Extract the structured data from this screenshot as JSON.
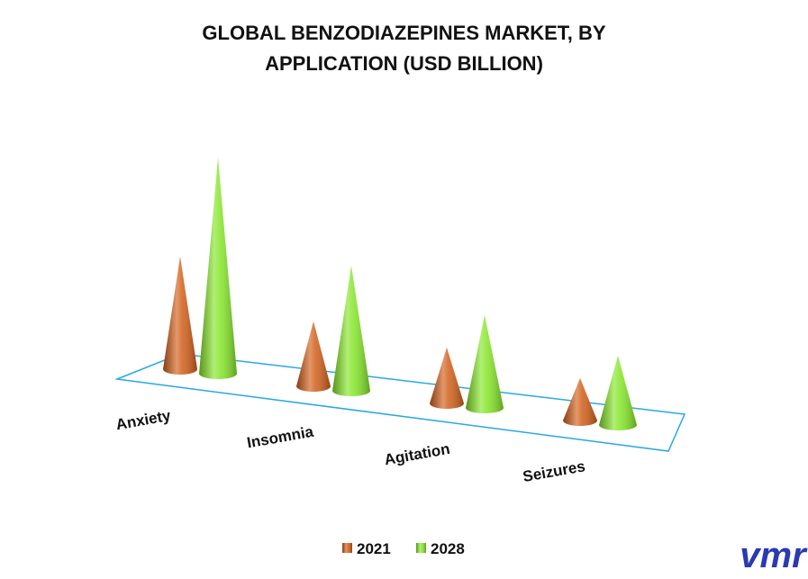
{
  "chart_data": {
    "type": "cone3d",
    "title": "GLOBAL BENZODIAZEPINES MARKET, BY APPLICATION (USD BILLION)",
    "categories": [
      "Anxiety",
      "Insomnia",
      "Agitation",
      "Seizures"
    ],
    "series": [
      {
        "name": "2021",
        "color": "#d2601a",
        "values": [
          1.25,
          0.72,
          0.62,
          0.47
        ]
      },
      {
        "name": "2028",
        "color": "#86e62a",
        "values": [
          2.4,
          1.39,
          1.03,
          0.77
        ]
      }
    ],
    "floor_color": "#29a9e0",
    "logo": "vmr"
  }
}
